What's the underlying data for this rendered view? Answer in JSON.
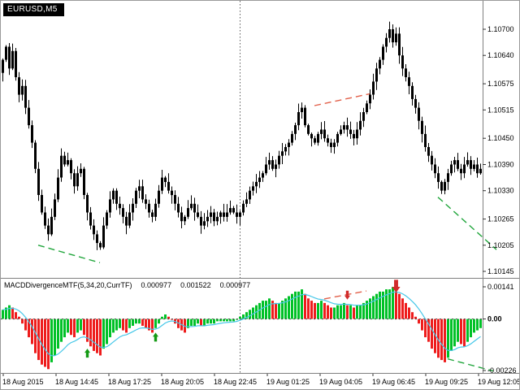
{
  "symbol_label": "EURUSD,M5",
  "indicator_label": {
    "name": "MACDDivergenceMTF(5,34,20,CurrTF)",
    "values": [
      "0.000977",
      "0.001522",
      "0.000977"
    ]
  },
  "price_axis": {
    "labels": [
      "1.10700",
      "1.10640",
      "1.10575",
      "1.10515",
      "1.10450",
      "1.10390",
      "1.10330",
      "1.10265",
      "1.10205",
      "1.10145"
    ],
    "prices": [
      1.107,
      1.1064,
      1.10575,
      1.10515,
      1.1045,
      1.1039,
      1.1033,
      1.10265,
      1.10205,
      1.10145
    ]
  },
  "indicator_axis": {
    "labels": [
      "0.00141",
      "0.00",
      "-0.00226"
    ],
    "values": [
      0.00141,
      0,
      -0.00226
    ]
  },
  "time_axis": {
    "labels": [
      "18 Aug 2015",
      "18 Aug 14:45",
      "18 Aug 17:25",
      "18 Aug 20:05",
      "18 Aug 22:45",
      "19 Aug 01:25",
      "19 Aug 04:05",
      "19 Aug 06:45",
      "19 Aug 09:25",
      "19 Aug 12:05"
    ]
  },
  "colors": {
    "background": "#ffffff",
    "candle": "#000000",
    "hist_up": "#00c127",
    "hist_down": "#ee1c1c",
    "signal_line": "#45c7e8",
    "divergence_green": "#21a63c",
    "divergence_red": "#e2604a",
    "arrow_green": "#149a14",
    "arrow_red": "#d12b2b",
    "axis_text": "#000000",
    "separator": "#808080",
    "symbol_label_bg": "#000000",
    "symbol_label_fg": "#ffffff"
  },
  "chart_data": [
    {
      "type": "candlestick",
      "title": "EURUSD,M5",
      "timeframe": "M5",
      "ylabel": "price",
      "ylim": [
        1.10145,
        1.107
      ],
      "x_labels": [
        "18 Aug 2015",
        "18 Aug 14:45",
        "18 Aug 17:25",
        "18 Aug 20:05",
        "18 Aug 22:45",
        "19 Aug 01:25",
        "19 Aug 04:05",
        "19 Aug 06:45",
        "19 Aug 09:25",
        "19 Aug 12:05"
      ],
      "first_open": 1.106,
      "closes": [
        1.1063,
        1.1066,
        1.1061,
        1.1065,
        1.1059,
        1.1055,
        1.1057,
        1.1052,
        1.1048,
        1.1044,
        1.1038,
        1.1032,
        1.1028,
        1.1025,
        1.1023,
        1.1027,
        1.1031,
        1.1036,
        1.1041,
        1.1039,
        1.104,
        1.1037,
        1.1034,
        1.1037,
        1.1038,
        1.1032,
        1.1028,
        1.1025,
        1.1023,
        1.1021,
        1.102,
        1.1025,
        1.1028,
        1.1031,
        1.1033,
        1.103,
        1.1029,
        1.1027,
        1.1025,
        1.1028,
        1.103,
        1.1033,
        1.1034,
        1.1031,
        1.103,
        1.1028,
        1.1027,
        1.103,
        1.1033,
        1.1036,
        1.1035,
        1.1033,
        1.1032,
        1.103,
        1.1028,
        1.1026,
        1.1027,
        1.1029,
        1.103,
        1.1028,
        1.1027,
        1.1025,
        1.1026,
        1.1027,
        1.1028,
        1.1026,
        1.1027,
        1.1028,
        1.1027,
        1.1028,
        1.1029,
        1.1028,
        1.1027,
        1.1028,
        1.103,
        1.1031,
        1.1033,
        1.1034,
        1.1035,
        1.1036,
        1.1037,
        1.1039,
        1.104,
        1.1038,
        1.1039,
        1.1041,
        1.1042,
        1.1043,
        1.1044,
        1.1046,
        1.1048,
        1.1051,
        1.1052,
        1.1048,
        1.1046,
        1.1045,
        1.1044,
        1.1046,
        1.1047,
        1.1045,
        1.1044,
        1.1043,
        1.1044,
        1.1046,
        1.1047,
        1.1048,
        1.1047,
        1.1046,
        1.1045,
        1.1047,
        1.1049,
        1.1051,
        1.1053,
        1.1055,
        1.1058,
        1.1061,
        1.1063,
        1.1066,
        1.1068,
        1.107,
        1.1067,
        1.1069,
        1.1064,
        1.1061,
        1.1059,
        1.1057,
        1.1054,
        1.1052,
        1.1049,
        1.1046,
        1.1043,
        1.1041,
        1.1039,
        1.1037,
        1.1035,
        1.1033,
        1.1035,
        1.1037,
        1.1039,
        1.104,
        1.1038,
        1.1037,
        1.1039,
        1.104,
        1.1038,
        1.1039,
        1.1037,
        1.1038
      ]
    },
    {
      "type": "bar",
      "title": "MACDDivergenceMTF(5,34,20,CurrTF)",
      "ylim": [
        -0.00226,
        0.00141
      ],
      "bar_color_rule": "green if value >= previous else red",
      "signal": "EMA(8) of values drawn as cyan line",
      "values": [
        0.0004,
        0.0005,
        0.0006,
        0.0005,
        0.0003,
        0.0001,
        -0.0002,
        -0.0005,
        -0.0008,
        -0.0011,
        -0.0015,
        -0.0018,
        -0.002,
        -0.0021,
        -0.0022,
        -0.0019,
        -0.0016,
        -0.0013,
        -0.001,
        -0.0008,
        -0.0006,
        -0.0007,
        -0.0008,
        -0.0006,
        -0.0005,
        -0.0007,
        -0.001,
        -0.0012,
        -0.0014,
        -0.0015,
        -0.0016,
        -0.0013,
        -0.0011,
        -0.0008,
        -0.0006,
        -0.0005,
        -0.0004,
        -0.0005,
        -0.0006,
        -0.0004,
        -0.0003,
        -0.0002,
        -0.0002,
        -0.0003,
        -0.0004,
        -0.0005,
        -0.0006,
        -0.0004,
        -0.0002,
        0.0001,
        0.0002,
        0.0001,
        0.0,
        -0.0002,
        -0.0004,
        -0.0005,
        -0.0006,
        -0.0004,
        -0.0003,
        -0.0003,
        -0.0002,
        -0.0003,
        -0.0003,
        -0.0002,
        -0.0002,
        -0.0002,
        -0.0001,
        -0.0001,
        -0.0001,
        -0.0001,
        -0.0001,
        -0.0001,
        0.0,
        0.0001,
        0.0002,
        0.0003,
        0.0004,
        0.0005,
        0.0006,
        0.0007,
        0.0008,
        0.0008,
        0.0009,
        0.0008,
        0.0007,
        0.0007,
        0.0008,
        0.0009,
        0.001,
        0.0011,
        0.0012,
        0.0012,
        0.0013,
        0.0011,
        0.0009,
        0.0008,
        0.0007,
        0.0007,
        0.0008,
        0.0007,
        0.0006,
        0.0005,
        0.0005,
        0.0006,
        0.0006,
        0.0007,
        0.0006,
        0.0006,
        0.0005,
        0.0006,
        0.0006,
        0.0007,
        0.0008,
        0.0009,
        0.001,
        0.0011,
        0.0012,
        0.0012,
        0.0013,
        0.0013,
        0.0014,
        0.0012,
        0.0011,
        0.0009,
        0.0007,
        0.0005,
        0.0003,
        0.0001,
        -0.0002,
        -0.0005,
        -0.0008,
        -0.001,
        -0.0013,
        -0.0015,
        -0.0017,
        -0.0018,
        -0.0019,
        -0.0017,
        -0.0014,
        -0.0012,
        -0.001,
        -0.0011,
        -0.0012,
        -0.001,
        -0.0008,
        -0.0006,
        -0.0005,
        -0.0004
      ]
    }
  ],
  "annotations": {
    "day_separator_bar": 73,
    "price_lines": [
      {
        "color": "#21a63c",
        "from": {
          "bar": 11,
          "price": 1.10205
        },
        "to": {
          "bar": 30,
          "price": 1.10165
        }
      },
      {
        "color": "#21a63c",
        "from": {
          "bar": 134,
          "price": 1.10315
        },
        "to": {
          "bar": 152,
          "price": 1.10195
        }
      },
      {
        "color": "#e2604a",
        "from": {
          "bar": 96,
          "price": 1.10525
        },
        "to": {
          "bar": 113,
          "price": 1.10552
        }
      }
    ],
    "indicator_lines": [
      {
        "color": "#e2604a",
        "from": {
          "bar": 99,
          "value": 0.00088
        },
        "to": {
          "bar": 112,
          "value": 0.00123
        }
      },
      {
        "color": "#21a63c",
        "from": {
          "bar": 137,
          "value": -0.00175
        },
        "to": {
          "bar": 151,
          "value": -0.00228
        }
      }
    ],
    "arrows": [
      {
        "bar": 26,
        "value": -0.0013,
        "dir": "up",
        "color": "#149a14",
        "scale": 1
      },
      {
        "bar": 47,
        "value": -0.0006,
        "dir": "up",
        "color": "#149a14",
        "scale": 1
      },
      {
        "bar": 106,
        "value": 0.00085,
        "dir": "down",
        "color": "#d12b2b",
        "scale": 1
      },
      {
        "bar": 121,
        "value": 0.00115,
        "dir": "down",
        "color": "#d12b2b",
        "scale": 1.45
      }
    ]
  }
}
